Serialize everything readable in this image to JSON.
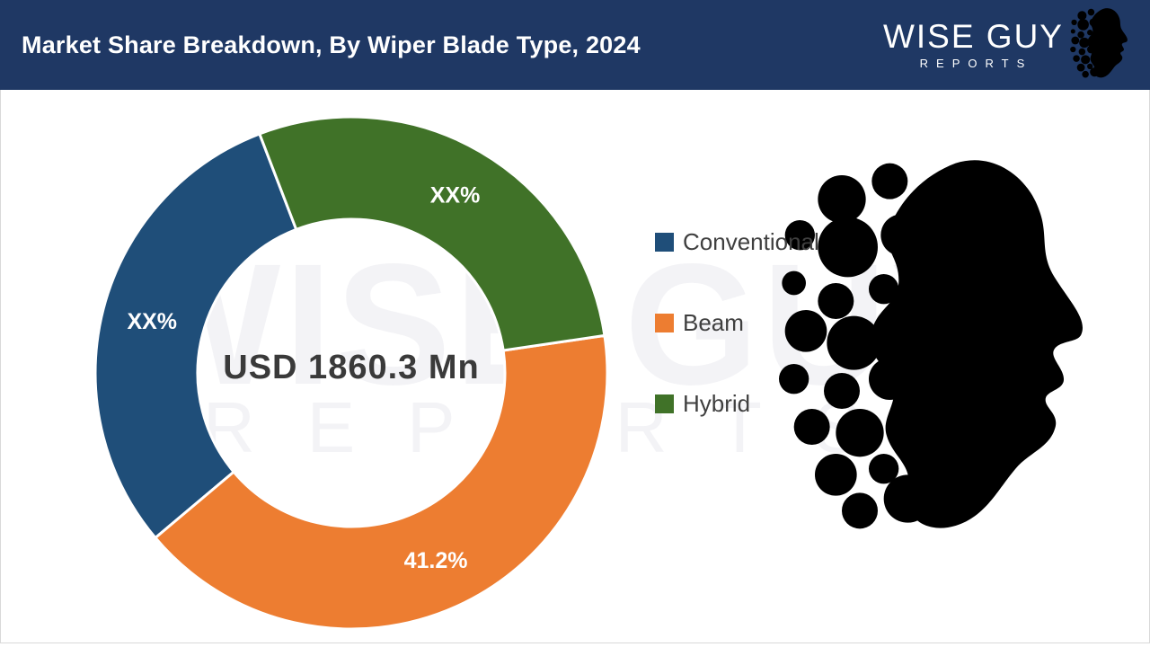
{
  "header": {
    "title": "Market Share Breakdown, By Wiper Blade Type, 2024",
    "bg_color": "#1F3864",
    "logo": {
      "line1": "WISE GUY",
      "line2": "REPORTS"
    }
  },
  "watermark": {
    "line1": "WISE GUY",
    "line2": "REPORTS"
  },
  "chart_data": {
    "type": "pie",
    "subtype": "donut",
    "title": "Market Share Breakdown, By Wiper Blade Type, 2024",
    "center_label": "USD 1860.3 Mn",
    "start_angle_deg": -21,
    "direction": "counterclockwise",
    "inner_radius_ratio": 0.6,
    "legend_position": "right",
    "slices": [
      {
        "name": "Conventional",
        "value_pct": 30.3,
        "displayed_label": "XX%",
        "color": "#1F4E79"
      },
      {
        "name": "Beam",
        "value_pct": 41.2,
        "displayed_label": "41.2%",
        "color": "#ED7D31"
      },
      {
        "name": "Hybrid",
        "value_pct": 28.5,
        "displayed_label": "XX%",
        "color": "#407228"
      }
    ]
  }
}
